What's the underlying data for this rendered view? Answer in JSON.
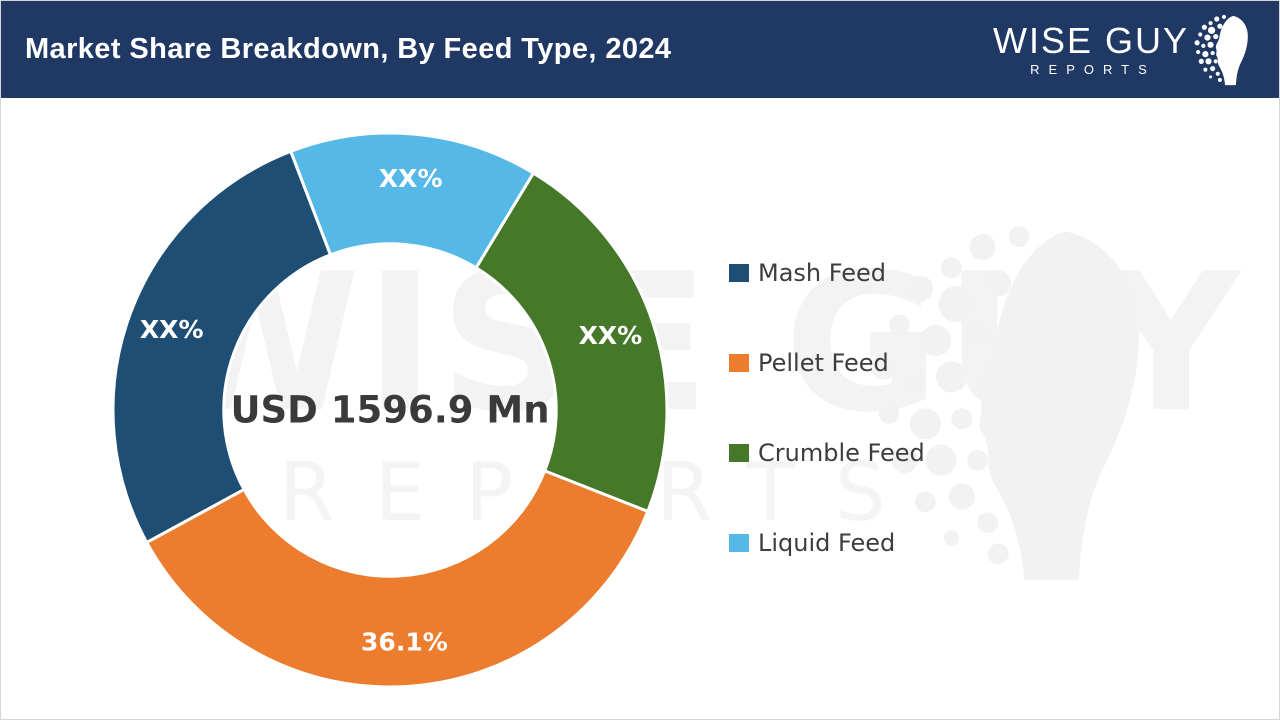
{
  "header": {
    "title": "Market Share Breakdown, By Feed Type, 2024",
    "bg_color": "#1f3864",
    "logo": {
      "line1": "WISE GUY",
      "line2": "REPORTS"
    }
  },
  "watermark": {
    "line1": "WISE GUY",
    "line2": "REPORTS"
  },
  "chart_data": {
    "type": "pie",
    "subtype": "donut",
    "title": "Market Share Breakdown, By Feed Type, 2024",
    "center_label": "USD 1596.9 Mn",
    "start_angle_deg": -21,
    "inner_radius_ratio": 0.6,
    "legend_position": "right",
    "segments": [
      {
        "label": "Liquid Feed",
        "display_value": "XX%",
        "percent": 14.5,
        "color": "#55b8e6"
      },
      {
        "label": "Crumble Feed",
        "display_value": "XX%",
        "percent": 22.3,
        "color": "#467829"
      },
      {
        "label": "Pellet Feed",
        "display_value": "36.1%",
        "percent": 36.1,
        "color": "#ec7d2f"
      },
      {
        "label": "Mash Feed",
        "display_value": "XX%",
        "percent": 27.1,
        "color": "#1f4e74"
      }
    ]
  },
  "legend": {
    "items": [
      {
        "label": "Mash Feed",
        "color": "#1f4e74"
      },
      {
        "label": "Pellet Feed",
        "color": "#ec7d2f"
      },
      {
        "label": "Crumble Feed",
        "color": "#467829"
      },
      {
        "label": "Liquid Feed",
        "color": "#55b8e6"
      }
    ]
  }
}
